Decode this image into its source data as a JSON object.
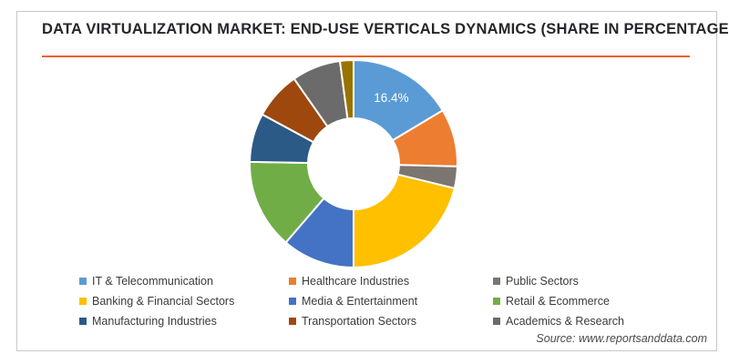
{
  "title": "DATA VIRTUALIZATION MARKET: END-USE VERTICALS DYNAMICS (SHARE IN PERCENTAGE)",
  "source_note": "Source: www.reportsanddata.com",
  "accent_color": "#e8632c",
  "frame_border_color": "#c8c8c8",
  "chart_data": {
    "type": "pie",
    "variant": "donut",
    "start_angle_deg": 0,
    "direction": "clockwise",
    "inner_radius_ratio": 0.44,
    "slice_border_color": "#ffffff",
    "visible_value_labels": [
      "16.4%"
    ],
    "values_note": "only 16.4% is labeled in the image; other shares estimated from slice angles",
    "series": [
      {
        "name": "IT & Telecommunication",
        "value": 16.4,
        "color": "#5B9BD5",
        "label": "16.4%"
      },
      {
        "name": "Healthcare Industries",
        "value": 9.0,
        "color": "#ED7D31",
        "label": null
      },
      {
        "name": "Public Sectors",
        "value": 3.4,
        "color": "#7B7672",
        "label": null
      },
      {
        "name": "Banking & Financial Sectors",
        "value": 21.2,
        "color": "#FFC000",
        "label": null
      },
      {
        "name": "Media & Entertainment",
        "value": 11.3,
        "color": "#4472C4",
        "label": null
      },
      {
        "name": "Retail & Ecommerce",
        "value": 14.0,
        "color": "#70AD47",
        "label": null
      },
      {
        "name": "Manufacturing Industries",
        "value": 7.6,
        "color": "#2B5A87",
        "label": null
      },
      {
        "name": "Transportation Sectors",
        "value": 7.4,
        "color": "#9E480E",
        "label": null
      },
      {
        "name": "Academics & Research",
        "value": 7.6,
        "color": "#6B6B6B",
        "label": null
      },
      {
        "name": "",
        "value": 2.1,
        "color": "#997300",
        "label": null
      }
    ],
    "legend": {
      "position": "bottom",
      "columns": 3,
      "entries": [
        {
          "label": "IT & Telecommunication",
          "color": "#5B9BD5"
        },
        {
          "label": "Healthcare Industries",
          "color": "#ED7D31"
        },
        {
          "label": "Public Sectors",
          "color": "#7B7672"
        },
        {
          "label": "Banking & Financial Sectors",
          "color": "#FFC000"
        },
        {
          "label": "Media & Entertainment",
          "color": "#4472C4"
        },
        {
          "label": "Retail & Ecommerce",
          "color": "#70AD47"
        },
        {
          "label": "Manufacturing Industries",
          "color": "#2B5A87"
        },
        {
          "label": "Transportation Sectors",
          "color": "#9E480E"
        },
        {
          "label": "Academics & Research",
          "color": "#6B6B6B"
        }
      ]
    }
  }
}
